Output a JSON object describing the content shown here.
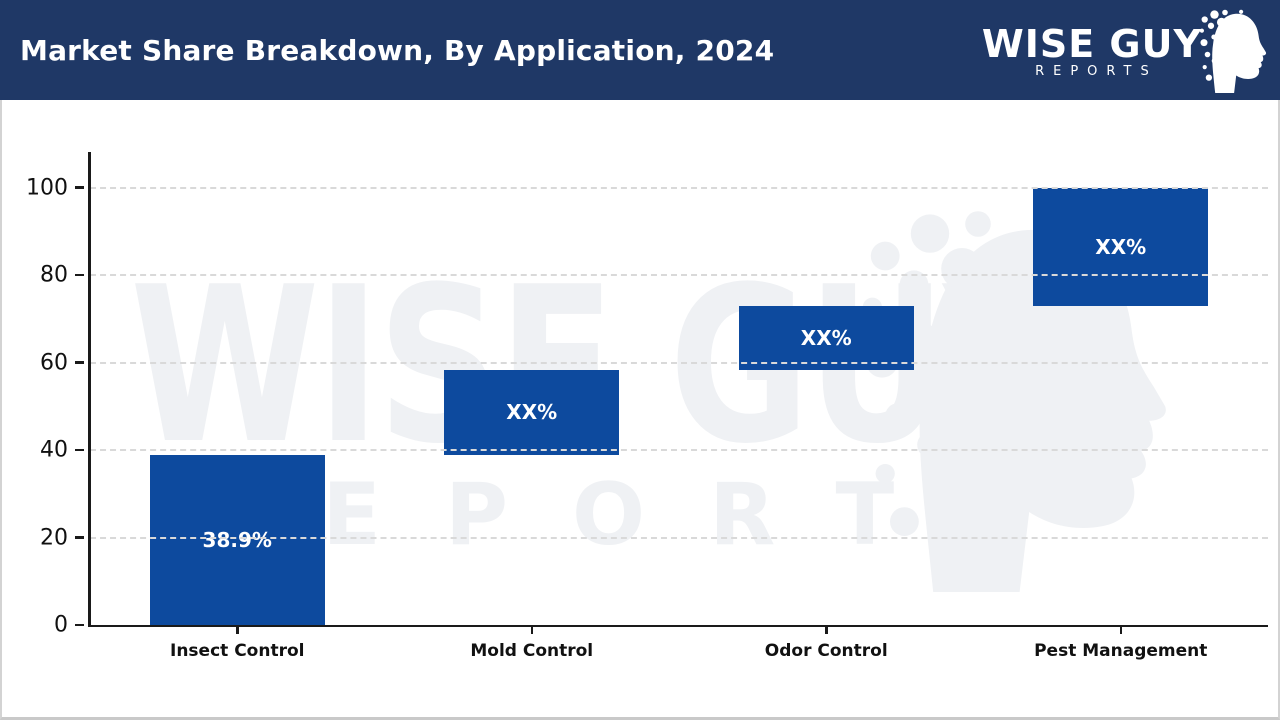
{
  "header": {
    "title": "Market Share Breakdown, By Application, 2024",
    "logo": {
      "line1": "WISE GUY",
      "line2": "REPORTS"
    }
  },
  "watermark": {
    "line1": "WISE GUY",
    "line2": "REPORTS"
  },
  "colors": {
    "header_bg": "#1f3866",
    "bar_blue": "#0d4a9e",
    "gridline": "#d9d9d9",
    "axis": "#1a1a1a",
    "watermark": "#eff1f4",
    "bar_label": "#ffffff"
  },
  "chart_data": {
    "type": "bar",
    "subtype": "waterfall",
    "title": "Market Share Breakdown, By Application, 2024",
    "categories": [
      "Insect Control",
      "Mold Control",
      "Odor Control",
      "Pest Management"
    ],
    "segments": [
      {
        "category": "Insect Control",
        "start": 0,
        "end": 38.9,
        "label": "38.9%"
      },
      {
        "category": "Mold Control",
        "start": 38.9,
        "end": 58.3,
        "label": "XX%"
      },
      {
        "category": "Odor Control",
        "start": 58.3,
        "end": 72.9,
        "label": "XX%"
      },
      {
        "category": "Pest Management",
        "start": 72.9,
        "end": 100,
        "label": "XX%"
      }
    ],
    "xlabel": "",
    "ylabel": "",
    "ylim": [
      0,
      100
    ],
    "yticks": [
      0,
      20,
      40,
      60,
      80,
      100
    ],
    "grid": "horizontal-dashed-over-bars",
    "legend": "none"
  }
}
